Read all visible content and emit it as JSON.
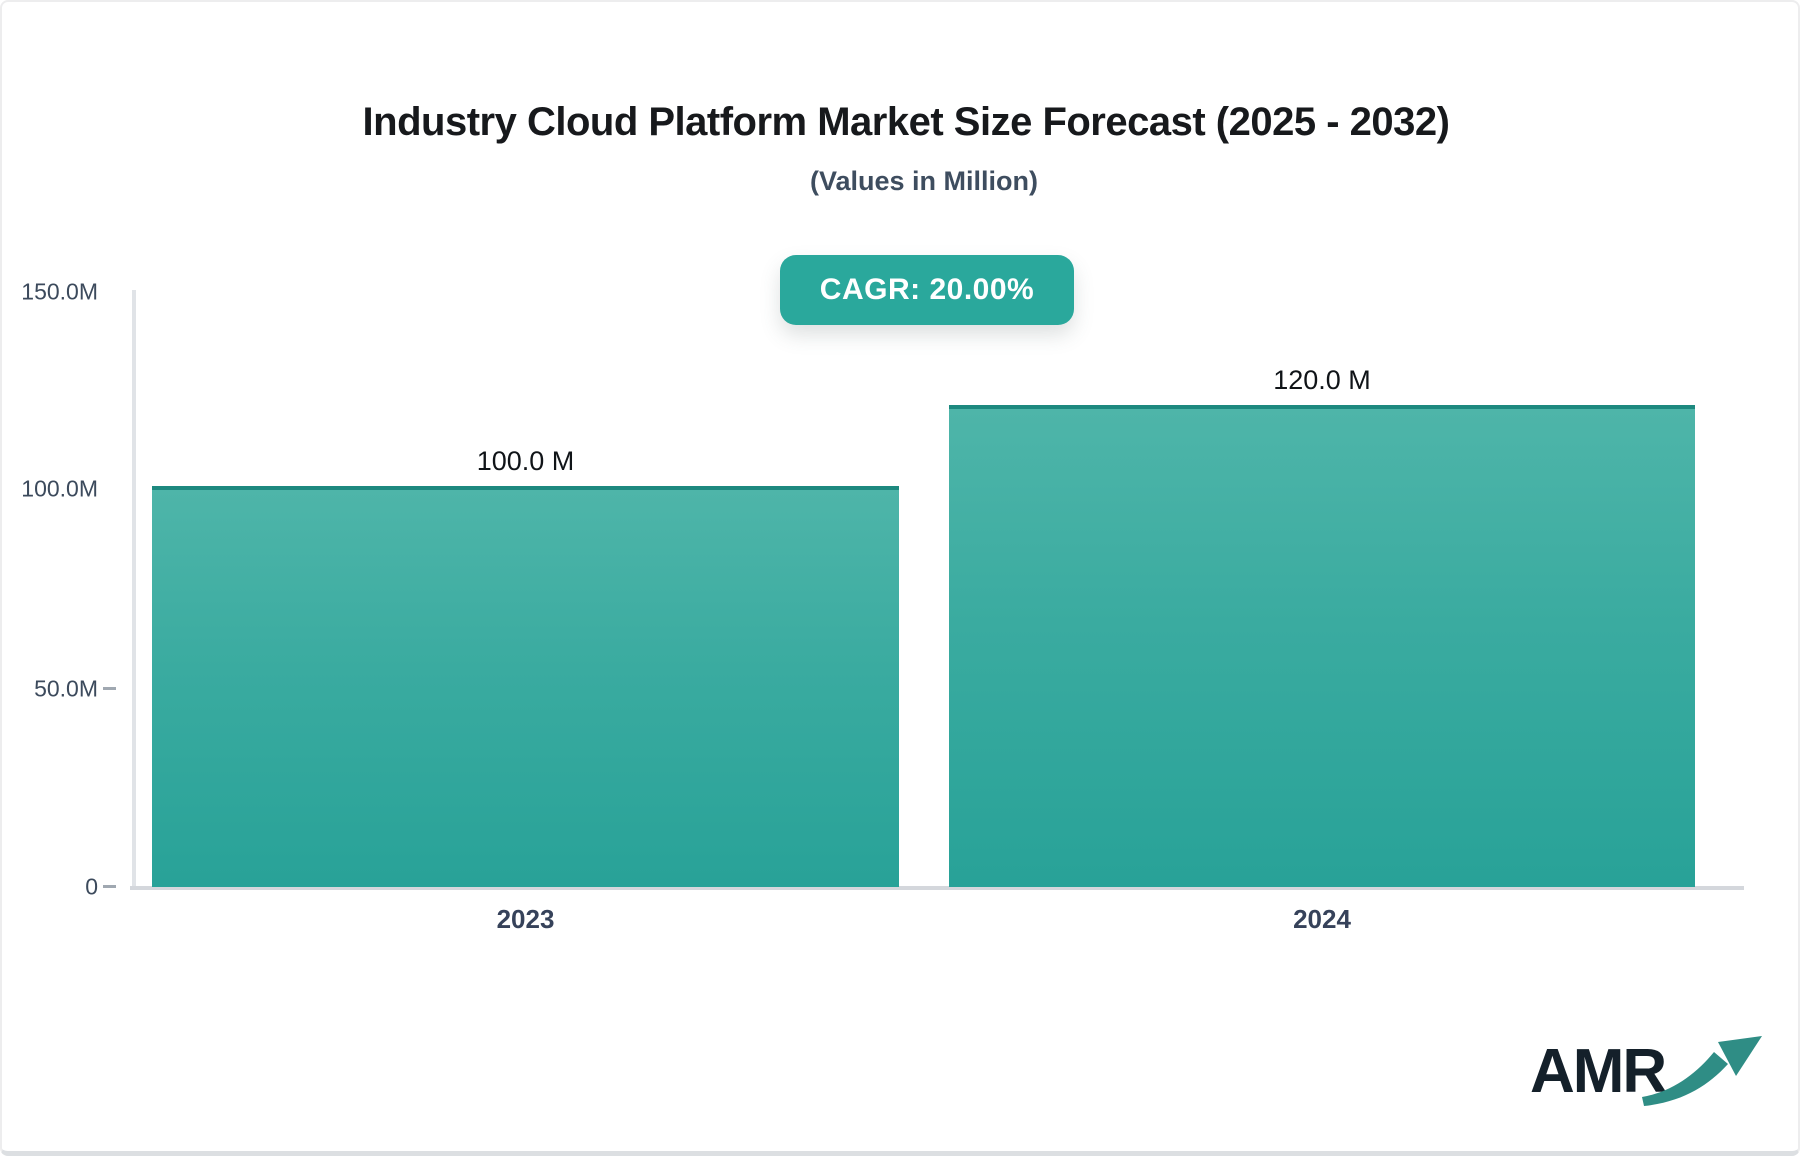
{
  "chart": {
    "title": "Industry Cloud Platform Market Size Forecast (2025 - 2032)",
    "subtitle": "(Values in Million)",
    "cagr_badge_label": "CAGR: 20.00%",
    "brand": "AMR"
  },
  "chart_data": {
    "type": "bar",
    "title": "Industry Cloud Platform Market Size Forecast (2025 - 2032)",
    "subtitle": "(Values in Million)",
    "unit": "Million",
    "cagr_percent": 20.0,
    "categories": [
      "2023",
      "2024"
    ],
    "values": [
      100.0,
      120.0
    ],
    "value_labels": [
      "100.0 M",
      "120.0 M"
    ],
    "xlabel": "",
    "ylabel": "",
    "ylim": [
      0,
      150
    ],
    "yticks": [
      {
        "value": 150,
        "label": "150.0M"
      },
      {
        "value": 100,
        "label": "100.0M"
      },
      {
        "value": 50,
        "label": "50.0M"
      },
      {
        "value": 0,
        "label": "0"
      }
    ],
    "grid": false,
    "legend": false,
    "colors": {
      "bar_gradient_top": "#4eb5a9",
      "bar_gradient_bottom": "#28a298",
      "bar_top_border": "#1d897f",
      "badge_background": "#2aa89c",
      "axis_line": "#d4d7dc",
      "tick_text": "#3c4a5c",
      "title_text": "#17191c",
      "logo_arrow": "#2f8d85"
    }
  }
}
